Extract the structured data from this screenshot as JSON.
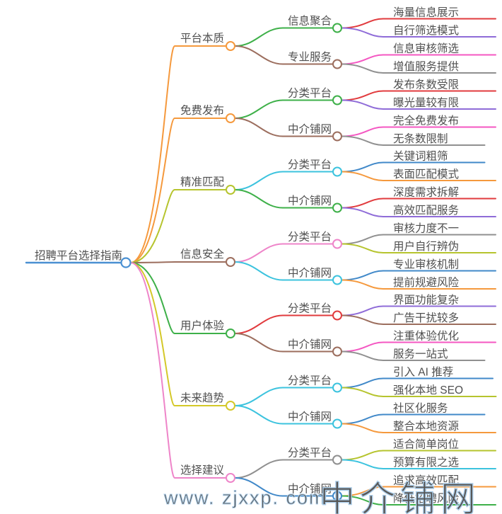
{
  "root": {
    "label": "招聘平台选择指南",
    "color": "#4a90d2"
  },
  "watermark": {
    "url_text": "www. zjxxp. com",
    "brand_text": "中介铺网",
    "color": "#a9cce9"
  },
  "branches": [
    {
      "label": "平台本质",
      "color": "#f5993d",
      "children": [
        {
          "label": "信息聚合",
          "color": "#3eb049",
          "leaves": [
            {
              "label": "海量信息展示",
              "color": "#e13b3e"
            },
            {
              "label": "自行筛选模式",
              "color": "#8f6cd8"
            }
          ]
        },
        {
          "label": "专业服务",
          "color": "#9c6e5e",
          "leaves": [
            {
              "label": "信息审核筛选",
              "color": "#f457c2"
            },
            {
              "label": "增值服务提供",
              "color": "#909090"
            }
          ]
        }
      ]
    },
    {
      "label": "免费发布",
      "color": "#f5993d",
      "children": [
        {
          "label": "分类平台",
          "color": "#3eb049",
          "leaves": [
            {
              "label": "发布条数受限",
              "color": "#e13b3e"
            },
            {
              "label": "曝光量较有限",
              "color": "#8f6cd8"
            }
          ]
        },
        {
          "label": "中介铺网",
          "color": "#9c6e5e",
          "leaves": [
            {
              "label": "完全免费发布",
              "color": "#f457c2"
            },
            {
              "label": "无条数限制",
              "color": "#909090"
            }
          ]
        }
      ]
    },
    {
      "label": "精准匹配",
      "color": "#b6c42e",
      "children": [
        {
          "label": "分类平台",
          "color": "#3cc3de",
          "leaves": [
            {
              "label": "关键词粗筛",
              "color": "#4189c9"
            },
            {
              "label": "表面匹配模式",
              "color": "#f5993d"
            }
          ]
        },
        {
          "label": "中介铺网",
          "color": "#3eb049",
          "leaves": [
            {
              "label": "深度需求拆解",
              "color": "#e13b3e"
            },
            {
              "label": "高效匹配服务",
              "color": "#8f6cd8"
            }
          ]
        }
      ]
    },
    {
      "label": "信息安全",
      "color": "#9c6e5e",
      "children": [
        {
          "label": "分类平台",
          "color": "#ee85c9",
          "leaves": [
            {
              "label": "审核力度不一",
              "color": "#909090"
            },
            {
              "label": "用户自行辨伪",
              "color": "#b6c42e"
            }
          ]
        },
        {
          "label": "中介铺网",
          "color": "#3cc3de",
          "leaves": [
            {
              "label": "专业审核机制",
              "color": "#4189c9"
            },
            {
              "label": "提前规避风险",
              "color": "#f5993d"
            }
          ]
        }
      ]
    },
    {
      "label": "用户体验",
      "color": "#3eb049",
      "children": [
        {
          "label": "分类平台",
          "color": "#e13b3e",
          "leaves": [
            {
              "label": "界面功能复杂",
              "color": "#8f6cd8"
            },
            {
              "label": "广告干扰较多",
              "color": "#9c6e5e"
            }
          ]
        },
        {
          "label": "中介铺网",
          "color": "#9c6e5e",
          "leaves": [
            {
              "label": "注重体验优化",
              "color": "#f457c2"
            },
            {
              "label": "服务一站式",
              "color": "#909090"
            }
          ]
        }
      ]
    },
    {
      "label": "未来趋势",
      "color": "#d4c829",
      "children": [
        {
          "label": "分类平台",
          "color": "#3cc3de",
          "leaves": [
            {
              "label": "引入 AI 推荐",
              "color": "#4189c9"
            },
            {
              "label": "强化本地 SEO",
              "color": "#b6c42e"
            }
          ]
        },
        {
          "label": "中介铺网",
          "color": "#3cc3de",
          "leaves": [
            {
              "label": "社区化服务",
              "color": "#4189c9"
            },
            {
              "label": "整合本地资源",
              "color": "#f5993d"
            }
          ]
        }
      ]
    },
    {
      "label": "选择建议",
      "color": "#ee85c9",
      "children": [
        {
          "label": "分类平台",
          "color": "#909090",
          "leaves": [
            {
              "label": "适合简单岗位",
              "color": "#b6c42e"
            },
            {
              "label": "预算有限之选",
              "color": "#3cc3de"
            }
          ]
        },
        {
          "label": "中介铺网",
          "color": "#4189c9",
          "leaves": [
            {
              "label": "追求高效匹配",
              "color": "#f5993d"
            },
            {
              "label": "降低招聘风险",
              "color": "#3eb049"
            }
          ]
        }
      ]
    }
  ]
}
